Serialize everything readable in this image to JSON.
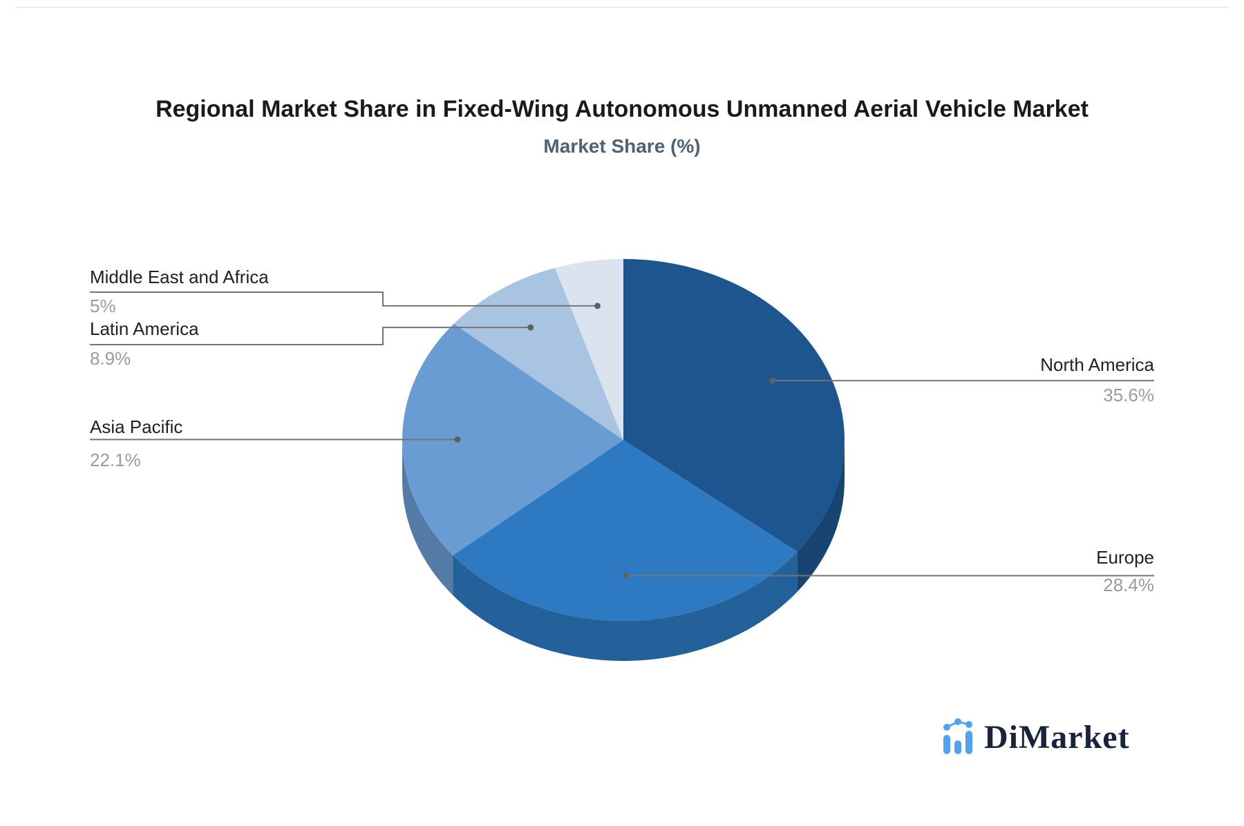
{
  "title": "Regional Market Share in Fixed-Wing Autonomous Unmanned Aerial Vehicle Market",
  "subtitle": "Market Share (%)",
  "chart_data": {
    "type": "pie",
    "style": "3d-pie",
    "unit": "%",
    "start_angle_deg": 0,
    "direction": "clockwise",
    "legend_position": "callout-labels",
    "slices": [
      {
        "name": "North America",
        "value": 35.6,
        "label": "35.6%",
        "color": "#1d568f",
        "side": "right"
      },
      {
        "name": "Europe",
        "value": 28.4,
        "label": "28.4%",
        "color": "#2e7ac2",
        "side": "right"
      },
      {
        "name": "Asia Pacific",
        "value": 22.1,
        "label": "22.1%",
        "color": "#699cd2",
        "side": "left"
      },
      {
        "name": "Latin America",
        "value": 8.9,
        "label": "8.9%",
        "color": "#a9c4e1",
        "side": "left"
      },
      {
        "name": "Middle East and Africa",
        "value": 5,
        "label": "5%",
        "color": "#dbe3ef",
        "side": "left"
      }
    ],
    "colors": {
      "connector_line": "#747474",
      "connector_dot": "#616161",
      "name_text": "#212121",
      "pct_text": "#9b9b9b",
      "title_text": "#1a1a1a",
      "subtitle_text": "#4d6372"
    }
  },
  "logo": {
    "text": "DiMarket",
    "icon": "bar-chart-icon",
    "icon_color": "#4fa3f0",
    "text_color": "#18233c"
  }
}
